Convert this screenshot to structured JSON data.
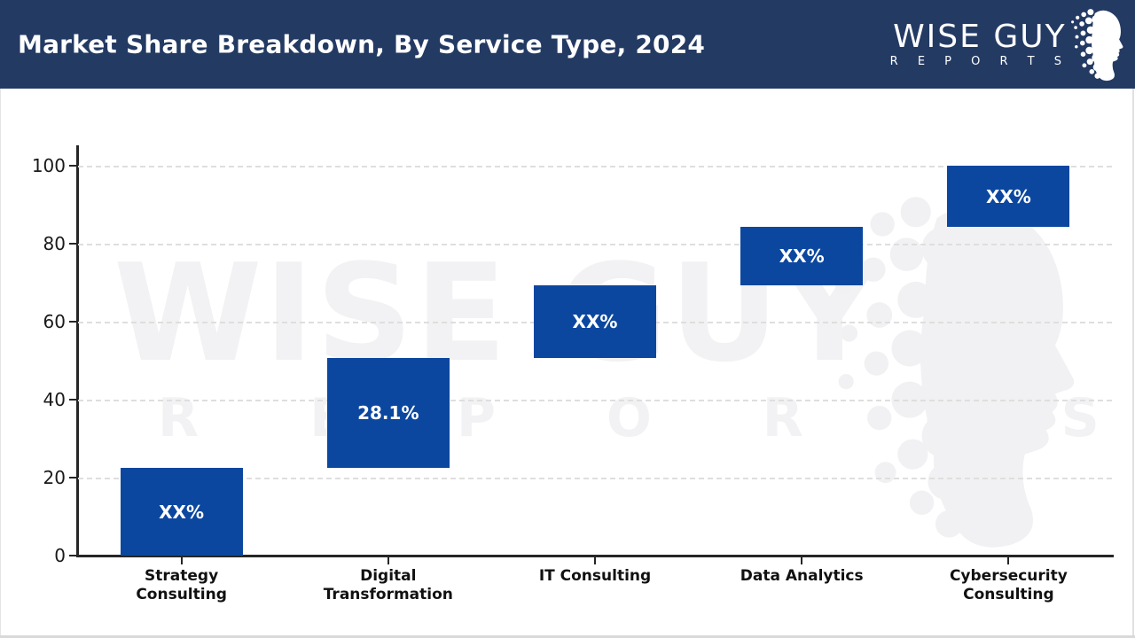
{
  "header": {
    "title": "Market Share Breakdown, By Service Type, 2024",
    "background_color": "#233a63",
    "brand": {
      "name": "WISE GUY",
      "tagline": "R E P O R T S"
    }
  },
  "watermark": {
    "name": "WISE GUY",
    "tagline": "R E P O R T S"
  },
  "chart_data": {
    "type": "bar",
    "variant": "waterfall",
    "title": "Market Share Breakdown, By Service Type, 2024",
    "categories": [
      "Strategy Consulting",
      "Digital Transformation",
      "IT Consulting",
      "Data Analytics",
      "Cybersecurity Consulting"
    ],
    "category_label_lines": [
      [
        "Strategy",
        "Consulting"
      ],
      [
        "Digital",
        "Transformation"
      ],
      [
        "IT Consulting"
      ],
      [
        "Data Analytics"
      ],
      [
        "Cybersecurity",
        "Consulting"
      ]
    ],
    "segments": [
      {
        "category": "Strategy Consulting",
        "label": "XX%",
        "start": 0,
        "end": 22.5
      },
      {
        "category": "Digital Transformation",
        "label": "28.1%",
        "value": 28.1,
        "start": 22.5,
        "end": 50.6
      },
      {
        "category": "IT Consulting",
        "label": "XX%",
        "start": 50.6,
        "end": 69.3
      },
      {
        "category": "Data Analytics",
        "label": "XX%",
        "start": 69.3,
        "end": 84.3
      },
      {
        "category": "Cybersecurity Consulting",
        "label": "XX%",
        "start": 84.3,
        "end": 100
      }
    ],
    "xlabel": "",
    "ylabel": "",
    "ylim": [
      0,
      100
    ],
    "yticks": [
      0,
      20,
      40,
      60,
      80,
      100
    ],
    "grid": {
      "horizontal": true,
      "style": "dashed",
      "color": "#dedede"
    },
    "legend_position": "none",
    "bar_color": "#0c479f",
    "bar_label_color": "#ffffff",
    "axis_color": "#262626",
    "tick_label_color": "#1a1a1a"
  }
}
